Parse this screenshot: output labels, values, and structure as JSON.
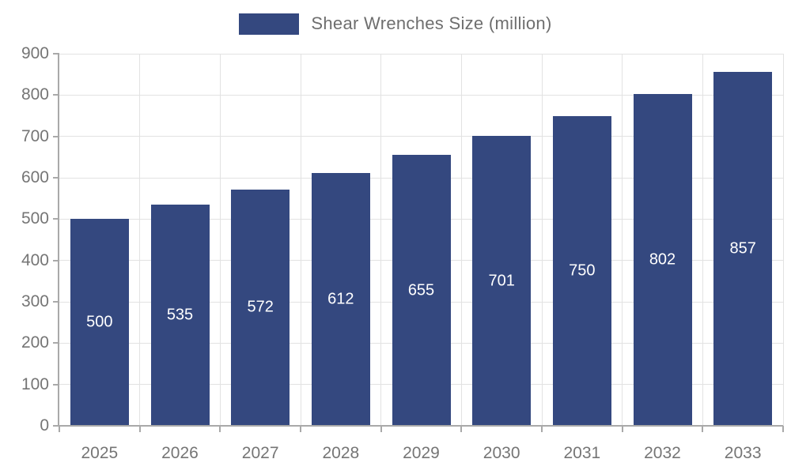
{
  "legend": {
    "label": "Shear Wrenches Size (million)"
  },
  "chart_data": {
    "type": "bar",
    "title": "",
    "series_name": "Shear Wrenches Size (million)",
    "categories": [
      "2025",
      "2026",
      "2027",
      "2028",
      "2029",
      "2030",
      "2031",
      "2032",
      "2033"
    ],
    "values": [
      500,
      535,
      572,
      612,
      655,
      701,
      750,
      802,
      857
    ],
    "xlabel": "",
    "ylabel": "",
    "ylim": [
      0,
      900
    ],
    "yticks": [
      0,
      100,
      200,
      300,
      400,
      500,
      600,
      700,
      800,
      900
    ],
    "grid": true,
    "bar_labels_inside": true,
    "legend_position": "top-center",
    "colors": {
      "bar": "#34487f",
      "bar_label": "#ffffff",
      "axis_line": "#a9a9a9",
      "grid_line": "#e2e2e2",
      "tick_label": "#757575",
      "legend_text": "#6e6e6e",
      "background": "#ffffff"
    }
  }
}
